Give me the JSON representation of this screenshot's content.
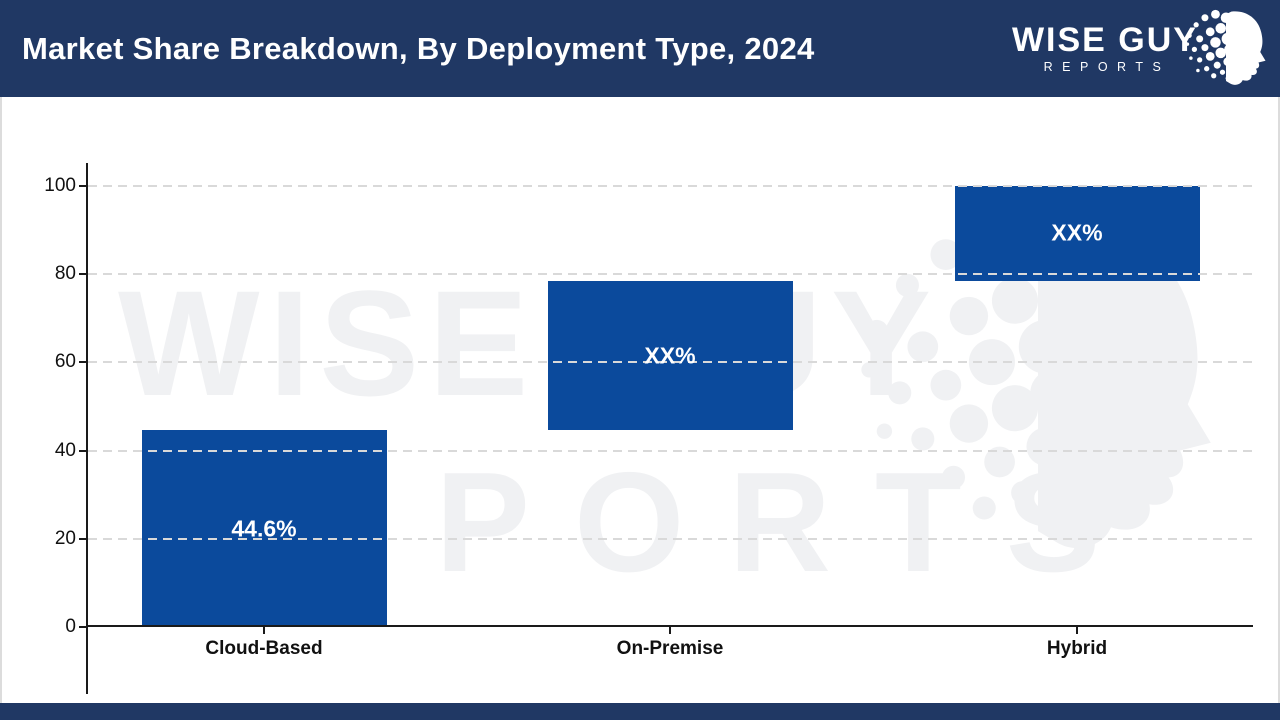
{
  "header": {
    "title": "Market Share Breakdown, By Deployment Type, 2024",
    "bg_color": "#203864",
    "logo": {
      "line1": "WISE GUY",
      "line2": "REPORTS"
    }
  },
  "watermark": {
    "line1": "WISE GUY",
    "line2": "REPORTS",
    "color": "#f0f1f3"
  },
  "footer": {
    "bg_color": "#203864"
  },
  "chart_data": {
    "type": "bar",
    "subtype": "waterfall",
    "title": "Market Share Breakdown, By Deployment Type, 2024",
    "xlabel": "",
    "ylabel": "",
    "categories": [
      "Cloud-Based",
      "On-Premise",
      "Hybrid"
    ],
    "segments": [
      {
        "category": "Cloud-Based",
        "start": 0,
        "end": 44.6,
        "label": "44.6%"
      },
      {
        "category": "On-Premise",
        "start": 44.6,
        "end": 78.5,
        "label": "XX%"
      },
      {
        "category": "Hybrid",
        "start": 78.5,
        "end": 100,
        "label": "XX%"
      }
    ],
    "ylim": [
      0,
      100
    ],
    "yticks": [
      0,
      20,
      40,
      60,
      80,
      100
    ],
    "grid": "horizontal dashed gridlines drawn above bars",
    "legend": "none",
    "bar_color": "#0b4a9c",
    "label_color": "#ffffff",
    "gridline_color": "#d9d9d9"
  }
}
